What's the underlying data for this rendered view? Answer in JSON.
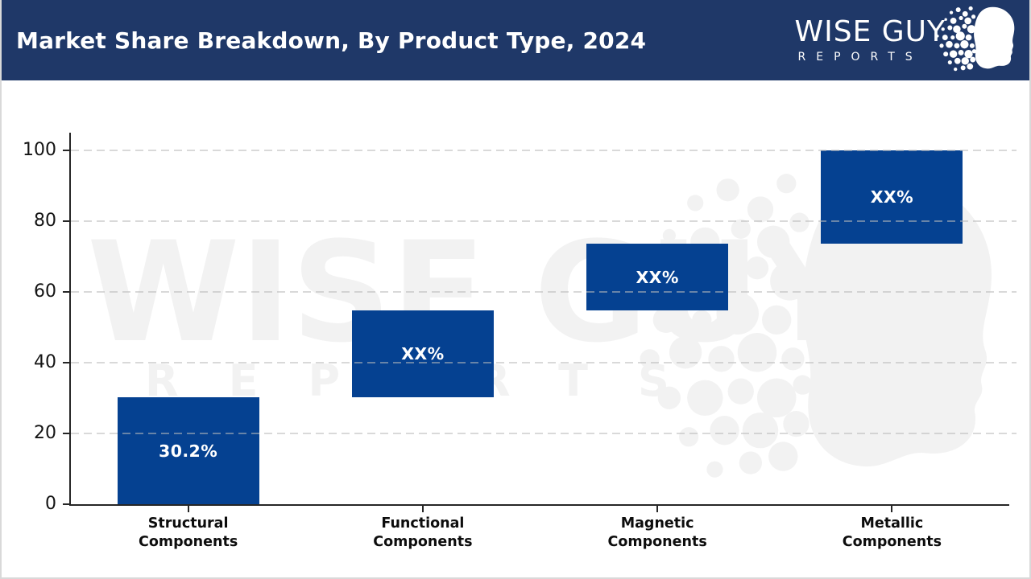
{
  "header": {
    "title": "Market Share Breakdown, By Product Type, 2024",
    "logo": {
      "line1": "WISE GUY",
      "line2": "REPORTS"
    }
  },
  "watermark": {
    "line1": "WISE GUY",
    "line2": "REPORTS"
  },
  "colors": {
    "header_bg": "#1f3868",
    "bar": "#054191",
    "bar_label": "#ffffff",
    "axis": "#262626",
    "gridline": "#dcdcdc",
    "watermark": "#f2f2f2"
  },
  "chart_data": {
    "type": "bar",
    "subtype": "waterfall",
    "title": "Market Share Breakdown, By Product Type, 2024",
    "categories": [
      "Structural Components",
      "Functional Components",
      "Magnetic Components",
      "Metallic Components"
    ],
    "category_lines": [
      [
        "Structural",
        "Components"
      ],
      [
        "Functional",
        "Components"
      ],
      [
        "Magnetic",
        "Components"
      ],
      [
        "Metallic",
        "Components"
      ]
    ],
    "segments": [
      {
        "category": "Structural Components",
        "start": 0,
        "end": 30.2,
        "label": "30.2%"
      },
      {
        "category": "Functional Components",
        "start": 30.2,
        "end": 54.7,
        "label": "XX%"
      },
      {
        "category": "Magnetic Components",
        "start": 54.7,
        "end": 73.6,
        "label": "XX%"
      },
      {
        "category": "Metallic Components",
        "start": 73.6,
        "end": 100,
        "label": "XX%"
      }
    ],
    "xlabel": "",
    "ylabel": "",
    "yticks": [
      0,
      20,
      40,
      60,
      80,
      100
    ],
    "ylim": [
      0,
      105
    ],
    "grid": "dashed-horizontal",
    "legend": "none",
    "bar_color": "#054191"
  }
}
